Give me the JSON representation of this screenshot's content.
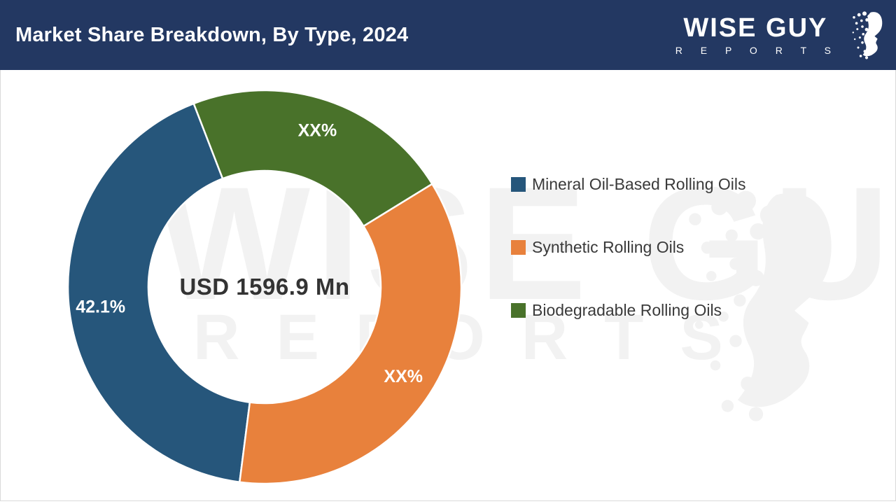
{
  "header": {
    "title": "Market Share Breakdown, By Type, 2024",
    "brand": {
      "name_top": "WISE GUY",
      "name_bottom": "R E P O R T S"
    }
  },
  "watermark": {
    "line1": "WISE GUY",
    "line2": "REPORTS"
  },
  "colors": {
    "header_bg": "#233862",
    "border": "#d9d9d9",
    "center_text": "#333333",
    "legend_text": "#3a3a3a",
    "watermark": "#f2f2f2"
  },
  "chart_data": {
    "type": "pie",
    "subtype": "donut",
    "title": "Market Share Breakdown, By Type, 2024",
    "center_label": "USD 1596.9 Mn",
    "legend_position": "right",
    "start_angle_deg": 187.3,
    "draw_order": [
      0,
      2,
      1
    ],
    "slices": [
      {
        "label": "Mineral Oil-Based Rolling Oils",
        "color": "#26567B",
        "display_pct": "42.1%",
        "pct_estimate": 42.1
      },
      {
        "label": "Synthetic Rolling Oils",
        "color": "#E8813C",
        "display_pct": "XX%",
        "pct_estimate": 35.8
      },
      {
        "label": "Biodegradable Rolling Oils",
        "color": "#49722A",
        "display_pct": "XX%",
        "pct_estimate": 22.1
      }
    ]
  }
}
